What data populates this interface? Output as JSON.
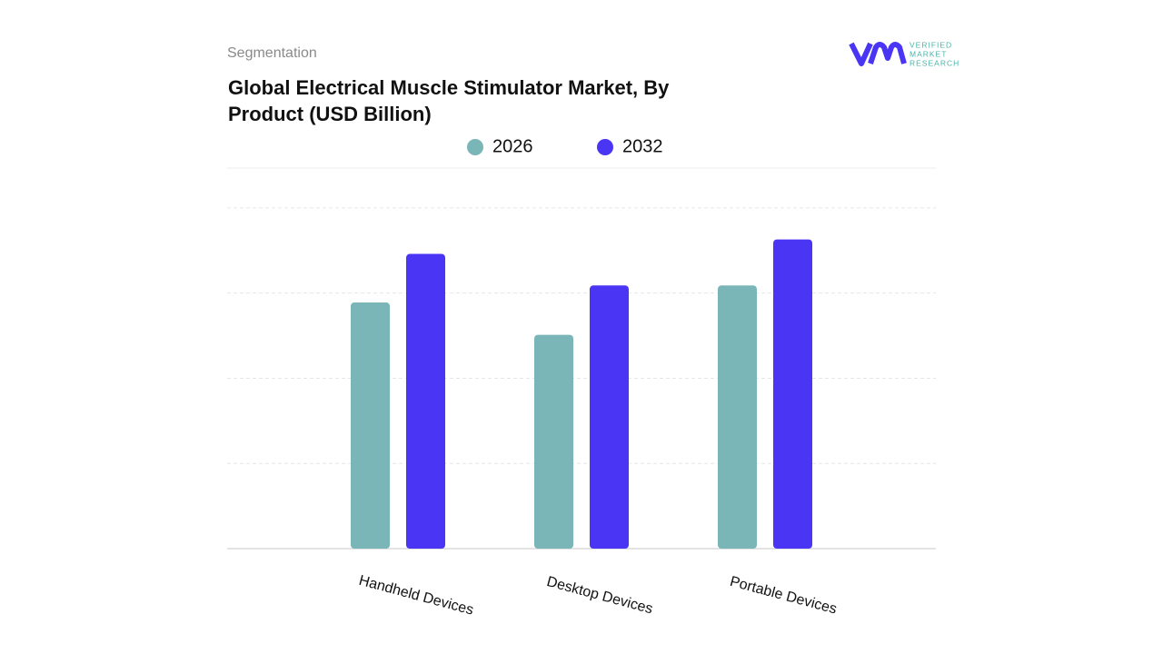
{
  "chart_data": {
    "type": "bar",
    "subtitle": "Segmentation",
    "title": "Global Electrical Muscle Stimulator Market, By Product (USD Billion)",
    "logo": [
      "VERIFIED",
      "MARKET",
      "RESEARCH"
    ],
    "categories": [
      "Handheld Devices",
      "Desktop Devices",
      "Portable Devices"
    ],
    "series": [
      {
        "name": "2026",
        "color": "#7ab5b8",
        "values": [
          2.89,
          2.51,
          3.09
        ]
      },
      {
        "name": "2032",
        "color": "#4a35f5",
        "values": [
          3.46,
          3.09,
          3.63
        ]
      }
    ],
    "ylim": [
      0,
      4.5
    ],
    "yticks": [
      1,
      2,
      3,
      4
    ],
    "tick_labels": false,
    "grid": true
  }
}
